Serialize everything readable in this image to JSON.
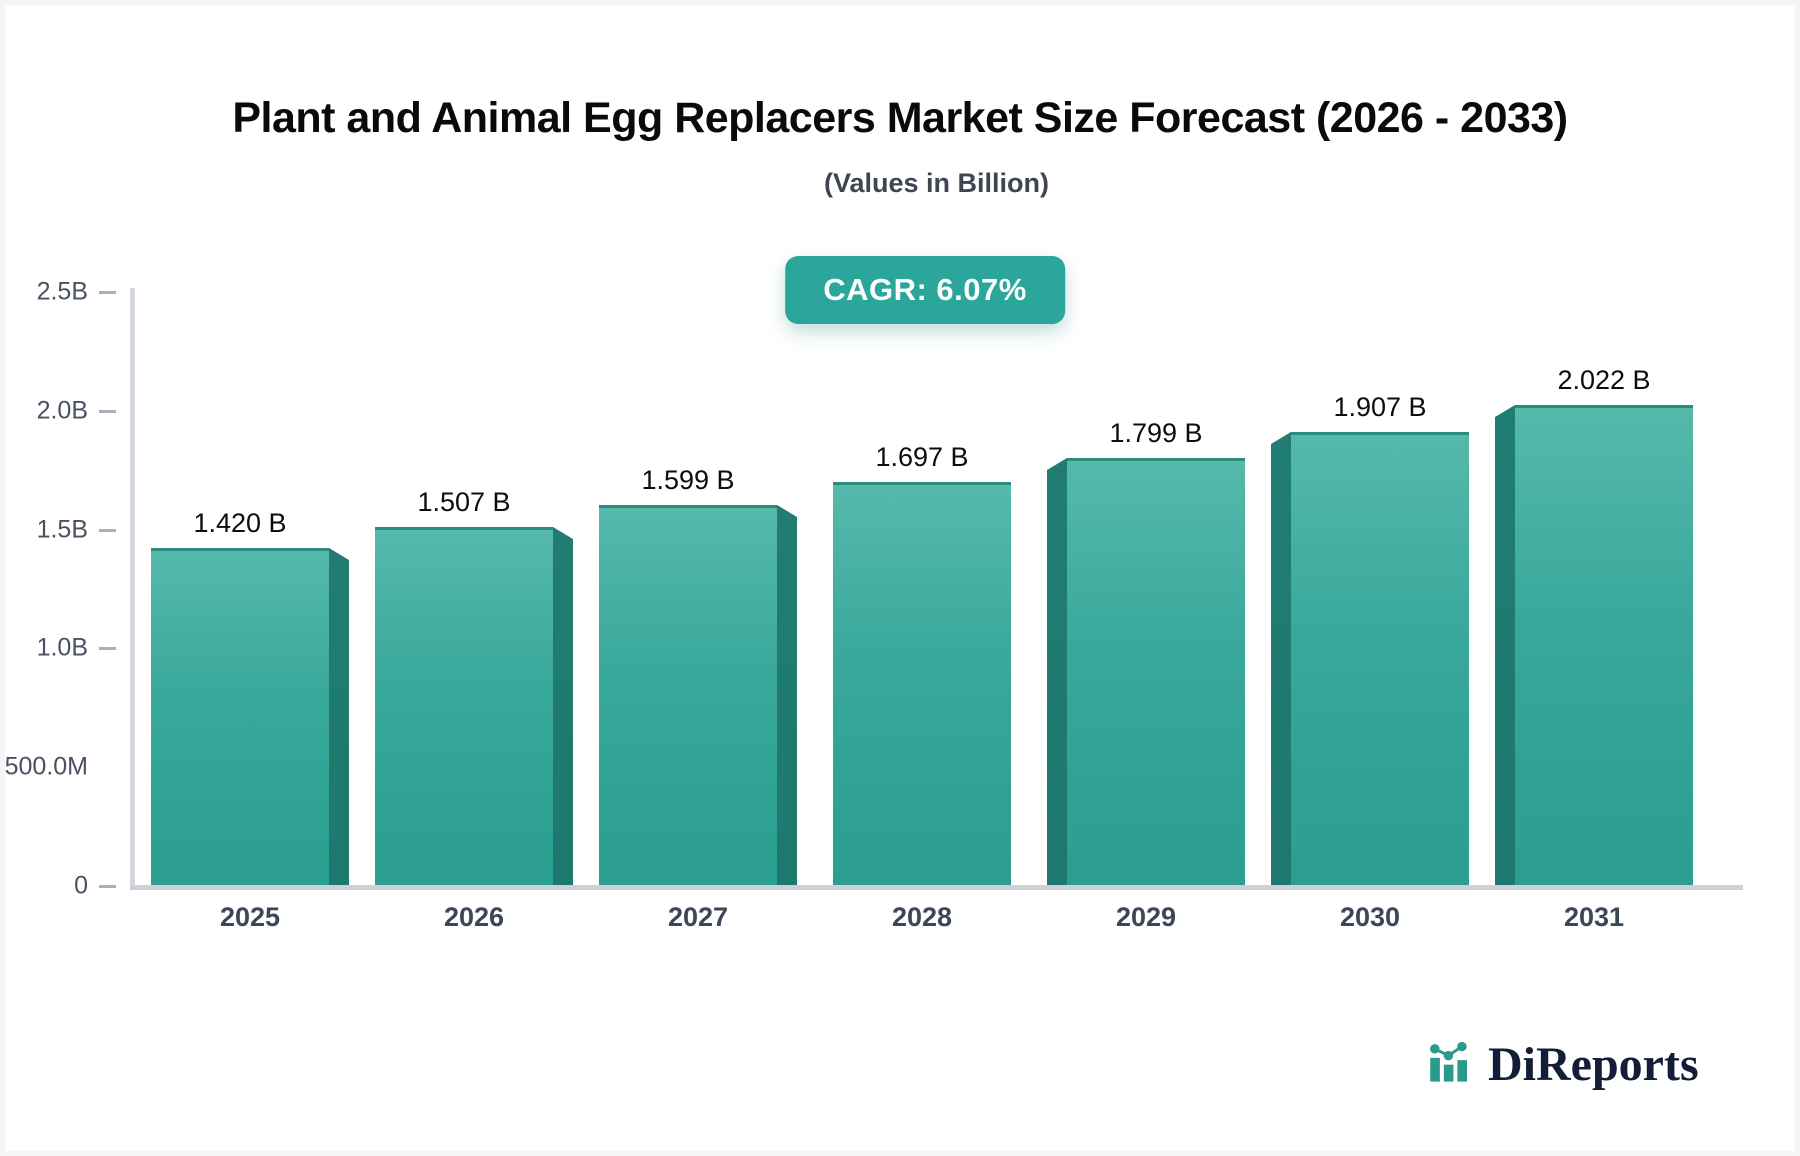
{
  "title": "Plant and Animal Egg Replacers Market Size Forecast (2026 - 2033)",
  "subtitle": "(Values in Billion)",
  "cagr_badge": "CAGR: 6.07%",
  "logo": {
    "brand": "DiReports"
  },
  "chart_data": {
    "type": "bar",
    "categories": [
      "2025",
      "2026",
      "2027",
      "2028",
      "2029",
      "2030",
      "2031"
    ],
    "values": [
      1.42,
      1.507,
      1.599,
      1.697,
      1.799,
      1.907,
      2.022
    ],
    "bar_labels": [
      "1.420 B",
      "1.507 B",
      "1.599 B",
      "1.697 B",
      "1.799 B",
      "1.907 B",
      "2.022 B"
    ],
    "title": "Plant and Animal Egg Replacers Market Size Forecast (2026 - 2033)",
    "subtitle": "(Values in Billion)",
    "annotation": "CAGR: 6.07%",
    "unit": "Billion",
    "xlabel": "",
    "ylabel": "",
    "ylim": [
      0,
      2.5
    ],
    "yticks": [
      {
        "label": "2.5B",
        "value": 2.5,
        "tick": true
      },
      {
        "label": "2.0B",
        "value": 2.0,
        "tick": true
      },
      {
        "label": "1.5B",
        "value": 1.5,
        "tick": true
      },
      {
        "label": "1.0B",
        "value": 1.0,
        "tick": true
      },
      {
        "label": "500.0M",
        "value": 0.5,
        "tick": false
      },
      {
        "label": "0",
        "value": 0,
        "tick": true
      }
    ],
    "grid": false,
    "legend": false,
    "style": "pseudo-3d-columns",
    "colors": {
      "bar_top": "#55b9ab",
      "bar_bottom": "#2b9e91",
      "bar_side": "#1f7b70",
      "bar_top_edge": "#2a8b7f",
      "badge_bg": "#2aa79a",
      "axis": "#ced2d8",
      "value_label": "#0c0d0e",
      "category_label": "#3c4656",
      "ytick_label": "#4a5160",
      "logo_teal": "#2a9a8c",
      "logo_navy": "#131d38"
    }
  }
}
